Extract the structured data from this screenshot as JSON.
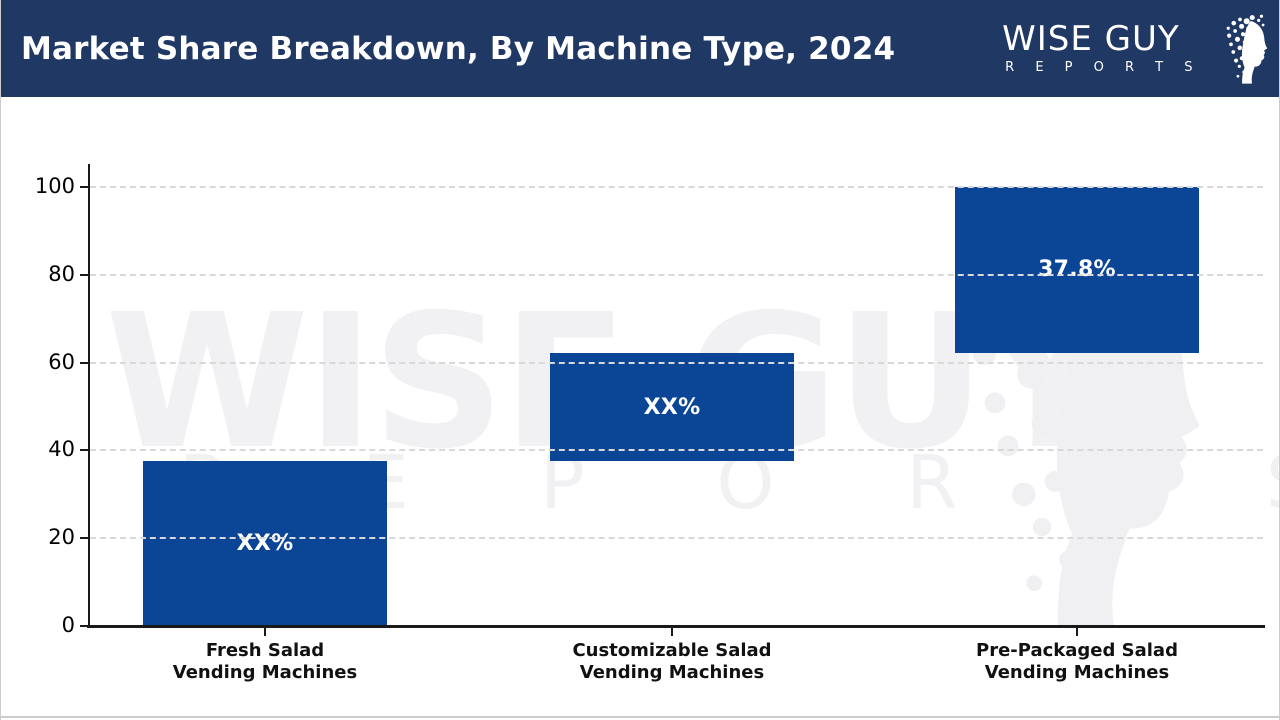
{
  "header": {
    "title": "Market Share Breakdown, By Machine Type, 2024",
    "bg_color": "#203864",
    "logo": {
      "line1": "WISE GUY",
      "line2": "R E P O R T S"
    }
  },
  "watermark": {
    "line1": "WISE GUY",
    "line2": "R E P O R T S"
  },
  "chart_data": {
    "type": "bar",
    "subtype": "waterfall",
    "title": "Market Share Breakdown, By Machine Type, 2024",
    "xlabel": "",
    "ylabel": "",
    "categories": [
      "Fresh Salad\nVending Machines",
      "Customizable Salad\nVending Machines",
      "Pre-Packaged Salad\nVending Machines"
    ],
    "bars": [
      {
        "start": 0,
        "end": 37.5,
        "label": "XX%"
      },
      {
        "start": 37.5,
        "end": 62.2,
        "label": "XX%"
      },
      {
        "start": 62.2,
        "end": 100,
        "label": "37.8%"
      }
    ],
    "bar_color": "#0a4596",
    "ylim": [
      0,
      100
    ],
    "yticks": [
      0,
      20,
      40,
      60,
      80,
      100
    ],
    "grid": "horizontal dashed, drawn over bars",
    "legend": "none"
  }
}
